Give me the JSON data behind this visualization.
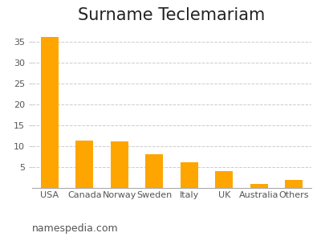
{
  "title": "Surname Teclemariam",
  "categories": [
    "USA",
    "Canada",
    "Norway",
    "Sweden",
    "Italy",
    "UK",
    "Australia",
    "Others"
  ],
  "values": [
    36,
    11.3,
    11.2,
    8,
    6.2,
    4,
    1,
    2
  ],
  "bar_color": "#FFA500",
  "ylim": [
    0,
    38
  ],
  "yticks": [
    5,
    10,
    15,
    20,
    25,
    30,
    35
  ],
  "grid_color": "#cccccc",
  "background_color": "#ffffff",
  "title_fontsize": 15,
  "tick_fontsize": 8,
  "watermark": "namespedia.com",
  "watermark_fontsize": 9,
  "bar_width": 0.5
}
